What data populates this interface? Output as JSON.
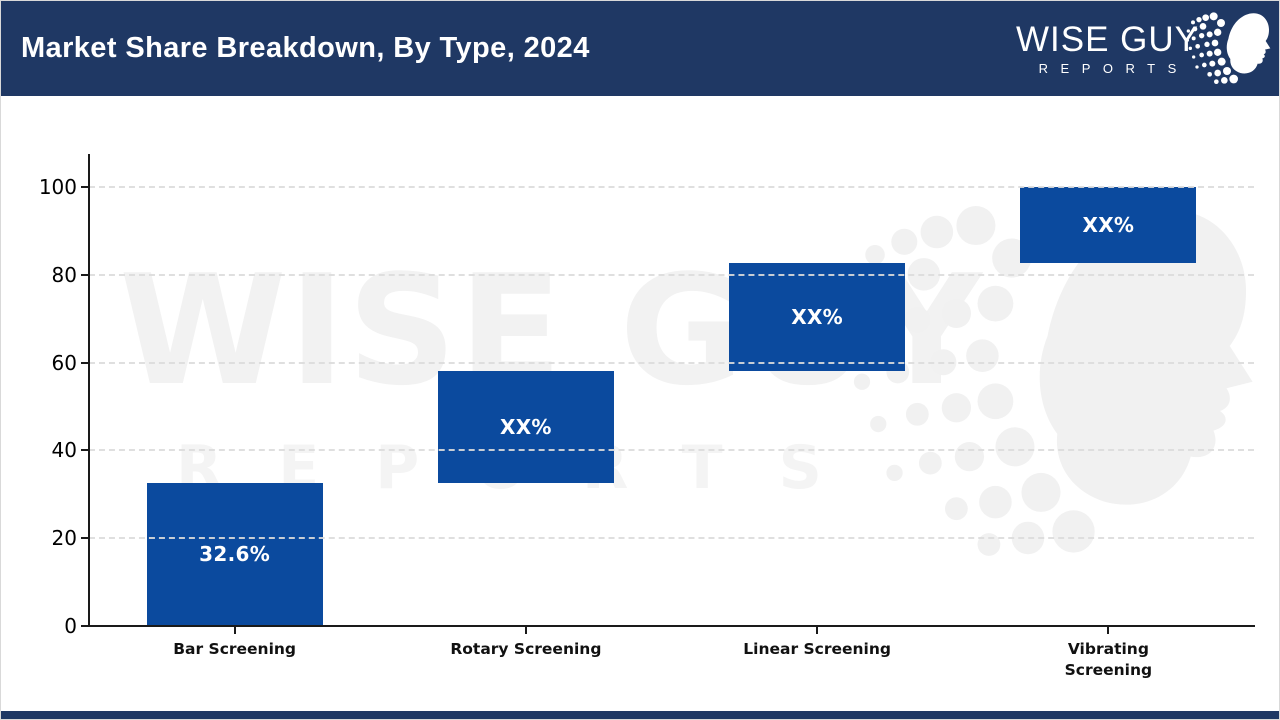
{
  "header": {
    "title": "Market Share Breakdown, By Type, 2024",
    "logo": {
      "line1": "WISE GUY",
      "line2": "REPORTS"
    }
  },
  "watermark": {
    "line1": "WISE GUY",
    "line2": "REPORTS"
  },
  "chart_data": {
    "type": "bar",
    "subtype": "waterfall",
    "title": "Market Share Breakdown, By Type, 2024",
    "categories": [
      "Bar Screening",
      "Rotary Screening",
      "Linear Screening",
      "Vibrating Screening"
    ],
    "category_display": [
      "Bar Screening",
      "Rotary Screening",
      "Linear Screening",
      "Vibrating\nScreening"
    ],
    "series": [
      {
        "name": "Market Share (%)",
        "segments": [
          {
            "category": "Bar Screening",
            "start": 0,
            "end": 32.6,
            "label": "32.6%"
          },
          {
            "category": "Rotary Screening",
            "start": 32.6,
            "end": 58.0,
            "label": "XX%"
          },
          {
            "category": "Linear Screening",
            "start": 58.0,
            "end": 82.6,
            "label": "XX%"
          },
          {
            "category": "Vibrating Screening",
            "start": 82.6,
            "end": 100,
            "label": "XX%"
          }
        ]
      }
    ],
    "xlabel": "",
    "ylabel": "",
    "ylim": [
      0,
      100
    ],
    "yticks": [
      0,
      20,
      40,
      60,
      80,
      100
    ],
    "grid": "horizontal-dashed",
    "legend": "none"
  },
  "colors": {
    "header_bg": "#1f3864",
    "footer_bg": "#1f3864",
    "bar": "#0b4a9e",
    "bar_label": "#ffffff",
    "grid": "#dcdcdc",
    "axis": "#1a1a1a",
    "tick_text": "#000000",
    "watermark": "#f2f2f2"
  }
}
